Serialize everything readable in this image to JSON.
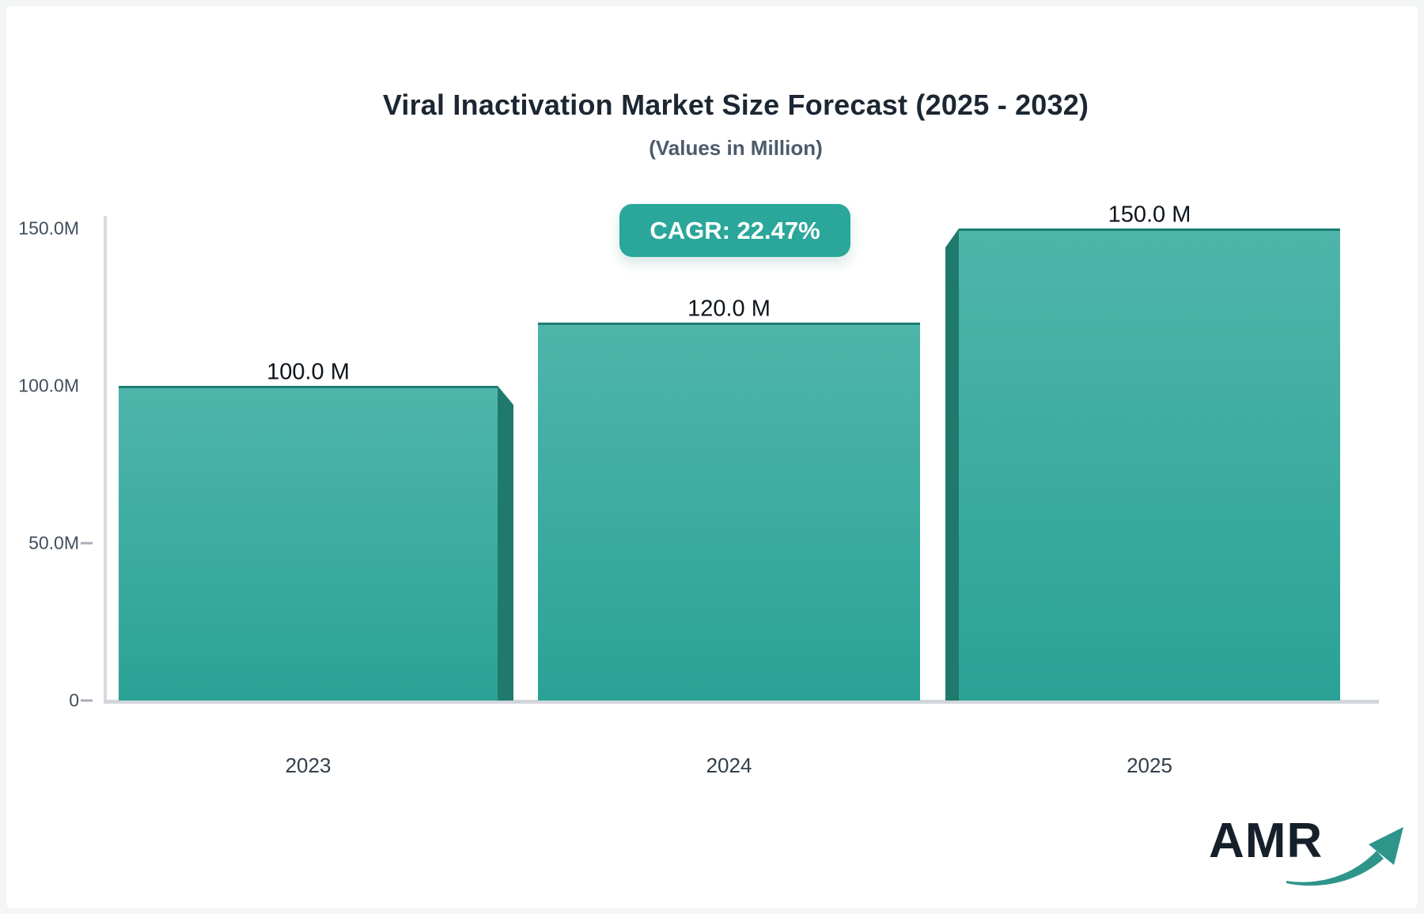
{
  "chart": {
    "title": "Viral Inactivation Market Size Forecast (2025 - 2032)",
    "subtitle": "(Values in Million)",
    "cagr_label": "CAGR: 22.47%"
  },
  "chart_data": {
    "type": "bar",
    "title": "Viral Inactivation Market Size Forecast (2025 - 2032)",
    "subtitle": "(Values in Million)",
    "annotation": "CAGR: 22.47%",
    "categories": [
      "2023",
      "2024",
      "2025"
    ],
    "values": [
      100.0,
      120.0,
      150.0
    ],
    "bar_labels": [
      "100.0 M",
      "120.0 M",
      "150.0 M"
    ],
    "unit": "Million",
    "xlabel": "",
    "ylabel": "",
    "ylim": [
      0,
      155
    ],
    "yticks": [
      {
        "value": 150,
        "label": "150.0M",
        "dash": false
      },
      {
        "value": 100,
        "label": "100.0M",
        "dash": false
      },
      {
        "value": 50,
        "label": "50.0M",
        "dash": true
      },
      {
        "value": 0,
        "label": "0",
        "dash": true
      }
    ],
    "grid": false,
    "legend": false,
    "colors": {
      "bar_top": "#4fb5ab",
      "bar_bottom": "#2aa296",
      "bar_side": "#1f7a6d",
      "bar_top_edge": "#1b7e71",
      "badge_background": "#2aa79a",
      "badge_text": "#ffffff",
      "axis": "#d7dade"
    }
  },
  "logo": {
    "text": "AMR"
  }
}
